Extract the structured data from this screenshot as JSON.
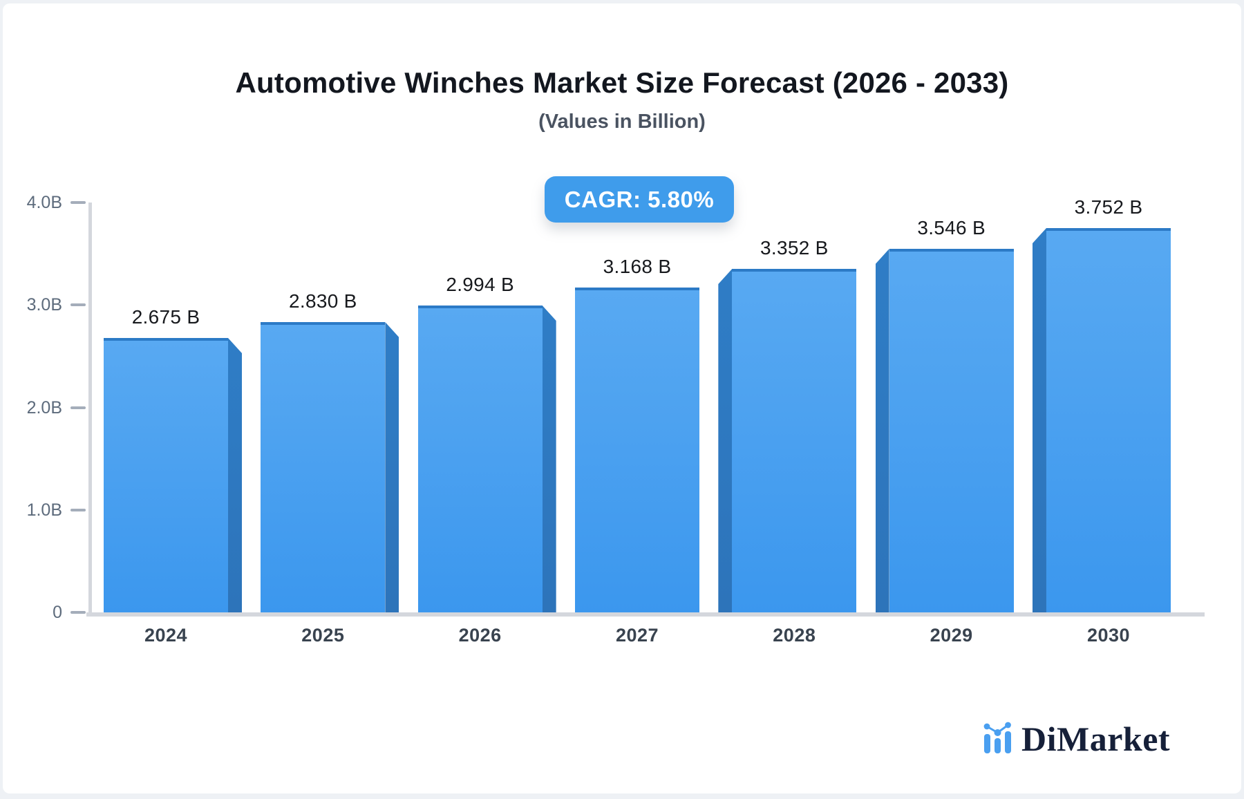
{
  "page": {
    "title": "Automotive Winches Market Size Forecast (2026 - 2033)",
    "subtitle": "(Values in Billion)",
    "cagr_badge": "CAGR: 5.80%"
  },
  "chart_data": {
    "type": "bar",
    "title": "Automotive Winches Market Size Forecast (2026 - 2033)",
    "subtitle": "(Values in Billion)",
    "categories": [
      "2024",
      "2025",
      "2026",
      "2027",
      "2028",
      "2029",
      "2030"
    ],
    "values": [
      2.675,
      2.83,
      2.994,
      3.168,
      3.352,
      3.546,
      3.752
    ],
    "value_labels": [
      "2.675 B",
      "2.830 B",
      "2.994 B",
      "3.168 B",
      "3.352 B",
      "3.546 B",
      "3.752 B"
    ],
    "unit": "Billion",
    "cagr": "5.80%",
    "xlabel": "",
    "ylabel": "",
    "ylim": [
      0,
      4
    ],
    "yticks": {
      "values": [
        0,
        1,
        2,
        3,
        4
      ],
      "labels": [
        "0",
        "1.0B",
        "2.0B",
        "3.0B",
        "4.0B"
      ]
    },
    "grid": false,
    "legend": false,
    "style": "3d-extruded-bars",
    "colors": {
      "bar_face_top": "#58a9f2",
      "bar_face_bottom": "#3b97ee",
      "bar_top_edge": "#2c7ac6",
      "bar_side": "#2e78c0",
      "axis_line": "#d4d7dd",
      "tick_text": "#5d6b7c",
      "category_text": "#39434f",
      "value_text": "#17191d",
      "badge_bg": "#3f9ceb",
      "badge_text": "#ffffff"
    }
  },
  "branding": {
    "logo_text": "DiMarket",
    "logo_icon": "bar-chart-trend-icon",
    "logo_text_color": "#162039",
    "logo_icon_color": "#4a9ff0"
  }
}
